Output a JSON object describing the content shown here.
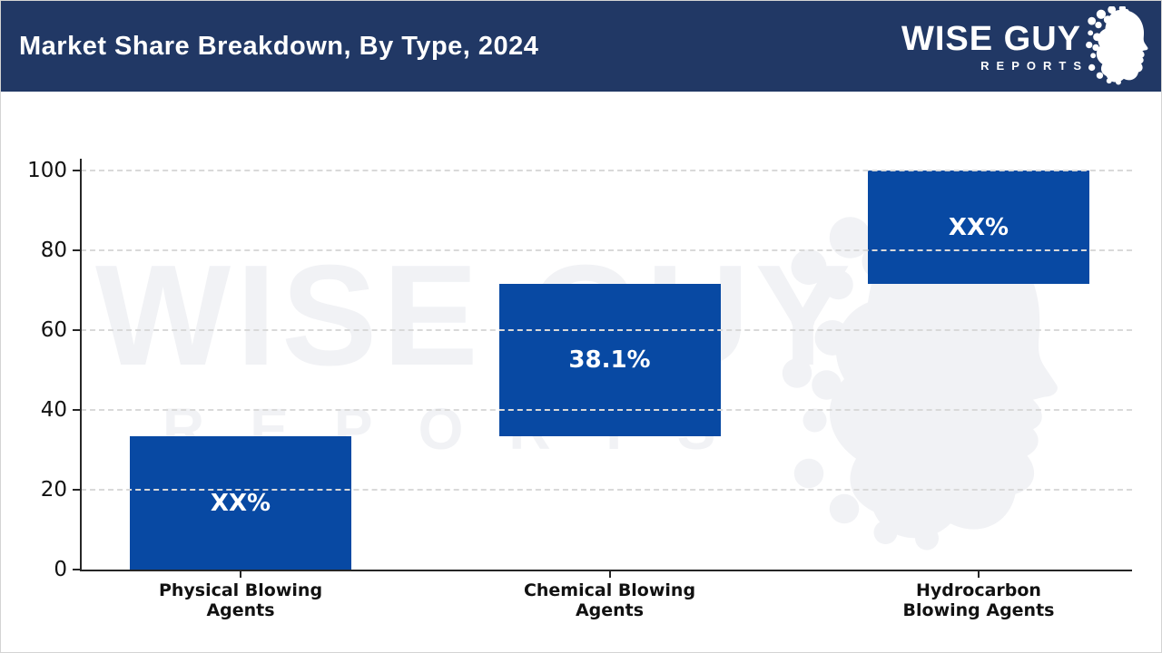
{
  "header": {
    "title": "Market Share Breakdown, By Type, 2024",
    "bg_color": "#213865",
    "logo": {
      "wordmark": "WISE GUY",
      "subtext": "REPORTS"
    }
  },
  "watermark": {
    "line1": "WISE GUY",
    "line2": "REPORTS"
  },
  "colors": {
    "header_bg": "#213865",
    "bar_blue": "#0849A3",
    "watermark_gray": "#f1f2f5",
    "grid_gray": "#d9d9d9",
    "axis_dark": "#262626"
  },
  "chart_data": {
    "type": "bar",
    "subtype": "waterfall",
    "title": "Market Share Breakdown, By Type, 2024",
    "categories": [
      "Physical Blowing Agents",
      "Chemical Blowing Agents",
      "Hydrocarbon Blowing Agents"
    ],
    "segments": [
      {
        "name": "Physical Blowing Agents",
        "line1": "Physical Blowing",
        "line2": "Agents",
        "start": 0,
        "end": 33.4,
        "value": 33.4,
        "display": "XX%"
      },
      {
        "name": "Chemical Blowing Agents",
        "line1": "Chemical Blowing",
        "line2": "Agents",
        "start": 33.4,
        "end": 71.5,
        "value": 38.1,
        "display": "38.1%"
      },
      {
        "name": "Hydrocarbon Blowing Agents",
        "line1": "Hydrocarbon",
        "line2": "Blowing Agents",
        "start": 71.5,
        "end": 100,
        "value": 28.5,
        "display": "XX%"
      }
    ],
    "yticks": [
      0,
      20,
      40,
      60,
      80,
      100
    ],
    "ylim": [
      0,
      103
    ],
    "xlabel": "",
    "ylabel": "",
    "grid": "horizontal-dashed",
    "legend": "none",
    "bar_labels_inside": true
  }
}
